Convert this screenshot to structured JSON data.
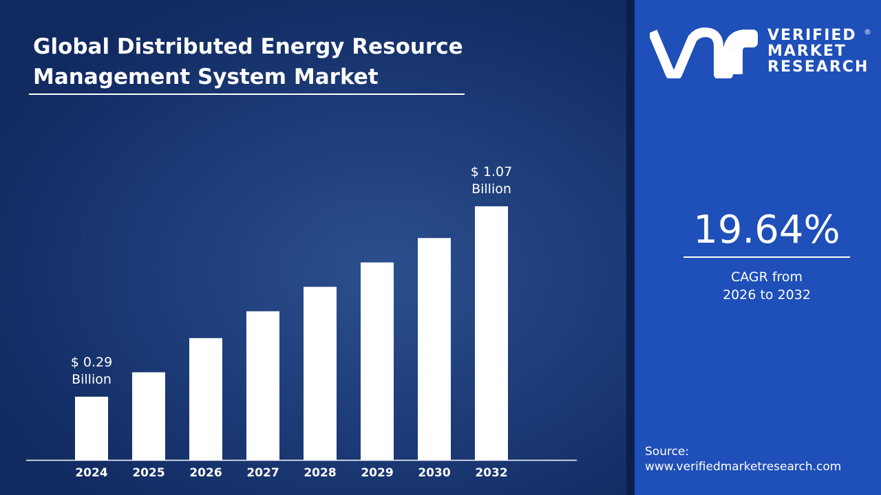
{
  "title_line1": "Global Distributed Energy Resource",
  "title_line2": "Management System Market",
  "brand": {
    "line1": "VERIFIED",
    "line2": "MARKET",
    "line3": "RESEARCH",
    "reg": "®"
  },
  "cagr": {
    "value": "19.64%",
    "label1": "CAGR from",
    "label2": "2026 to 2032"
  },
  "source": {
    "label": "Source:",
    "url": "www.verifiedmarketresearch.com"
  },
  "colors": {
    "bar": "#ffffff",
    "panel": "#1f4fb8",
    "background": "#15316a"
  },
  "chart_data": {
    "type": "bar",
    "categories": [
      "2024",
      "2025",
      "2026",
      "2027",
      "2028",
      "2029",
      "2030",
      "2032"
    ],
    "values": [
      0.29,
      0.39,
      0.53,
      0.64,
      0.74,
      0.84,
      0.94,
      1.07
    ],
    "unit": "USD Billion",
    "annotations": [
      {
        "category": "2024",
        "line1": "$ 0.29",
        "line2": "Billion"
      },
      {
        "category": "2032",
        "line1": "$ 1.07",
        "line2": "Billion"
      }
    ],
    "grid": false
  }
}
